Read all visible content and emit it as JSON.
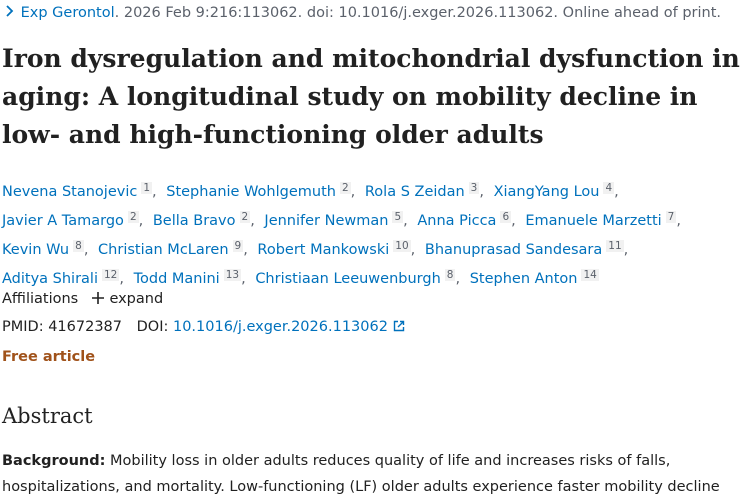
{
  "citation": {
    "journal": "Exp Gerontol",
    "details": ". 2026 Feb 9:216:113062. doi: 10.1016/j.exger.2026.113062. Online ahead of print."
  },
  "title": "Iron dysregulation and mitochondrial dysfunction in aging: A longitudinal study on mobility decline in low- and high-functioning older adults",
  "authors": {
    "separator": ",",
    "list": [
      {
        "name": "Nevena Stanojevic",
        "aff": 1
      },
      {
        "name": "Stephanie Wohlgemuth",
        "aff": 2
      },
      {
        "name": "Rola S Zeidan",
        "aff": 3
      },
      {
        "name": "XiangYang Lou",
        "aff": 4
      },
      {
        "name": "Javier A Tamargo",
        "aff": 2
      },
      {
        "name": "Bella Bravo",
        "aff": 2
      },
      {
        "name": "Jennifer Newman",
        "aff": 5
      },
      {
        "name": "Anna Picca",
        "aff": 6
      },
      {
        "name": "Emanuele Marzetti",
        "aff": 7
      },
      {
        "name": "Kevin Wu",
        "aff": 8
      },
      {
        "name": "Christian McLaren",
        "aff": 9
      },
      {
        "name": "Robert Mankowski",
        "aff": 10
      },
      {
        "name": "Bhanuprasad Sandesara",
        "aff": 11
      },
      {
        "name": "Aditya Shirali",
        "aff": 12
      },
      {
        "name": "Todd Manini",
        "aff": 13
      },
      {
        "name": "Christiaan Leeuwenburgh",
        "aff": 8
      },
      {
        "name": "Stephen Anton",
        "aff": 14
      }
    ]
  },
  "affiliations": {
    "label": "Affiliations",
    "toggle": "expand"
  },
  "identifiers": {
    "pmid_label": "PMID:",
    "pmid": "41672387",
    "doi_label": "DOI:",
    "doi": "10.1016/j.exger.2026.113062"
  },
  "free_article": "Free article",
  "abstract": {
    "heading": "Abstract",
    "label": "Background:",
    "text": "Mobility loss in older adults reduces quality of life and increases risks of falls, hospitalizations, and mortality. Low-functioning (LF) older adults experience faster mobility decline"
  }
}
